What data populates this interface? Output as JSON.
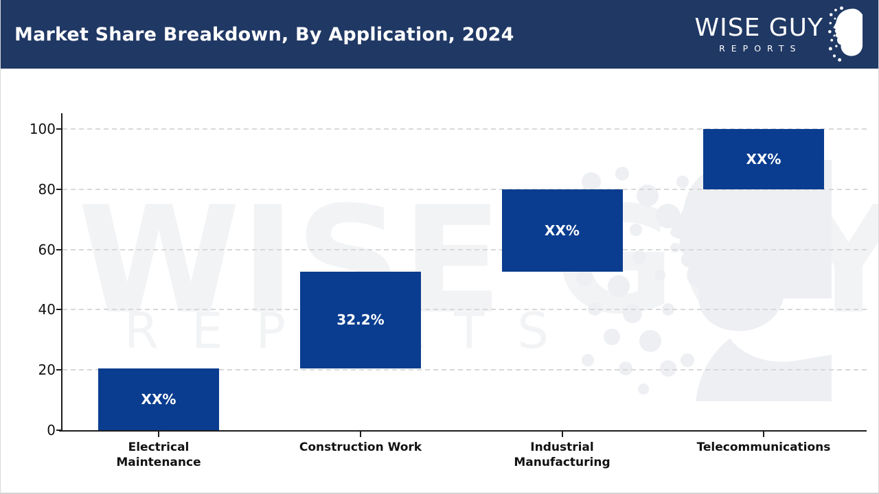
{
  "header": {
    "title": "Market Share Breakdown, By Application, 2024",
    "logo": {
      "name": "WISE GUY",
      "sub": "REPORTS",
      "icon": "wiseguy-face-icon"
    }
  },
  "watermark": {
    "big": "WISE GUY",
    "small": "REPORTS",
    "icon": "wiseguy-face-watermark-icon"
  },
  "chart_data": {
    "type": "bar",
    "subtype": "floating-waterfall",
    "title": "Market Share Breakdown, By Application, 2024",
    "categories": [
      "Electrical\nMaintenance",
      "Construction Work",
      "Industrial\nManufacturing",
      "Telecommunications"
    ],
    "segments": [
      {
        "category": "Electrical Maintenance",
        "start": 0,
        "end": 20.5,
        "label": "XX%"
      },
      {
        "category": "Construction Work",
        "start": 20.5,
        "end": 52.7,
        "label": "32.2%"
      },
      {
        "category": "Industrial Manufacturing",
        "start": 52.7,
        "end": 80,
        "label": "XX%"
      },
      {
        "category": "Telecommunications",
        "start": 80,
        "end": 100,
        "label": "XX%"
      }
    ],
    "ylim": [
      0,
      100
    ],
    "yticks": [
      0,
      20,
      40,
      60,
      80,
      100
    ],
    "grid": "horizontal-dashed",
    "legend": "none",
    "bar_color": "#0a3d8f",
    "bar_label_color": "#ffffff",
    "grid_color": "#d8d8d8",
    "axis_color": "#1c1c1c"
  },
  "colors": {
    "header_bg": "#203864",
    "watermark": "#f2f3f5",
    "page_border": "#d9d9d9"
  }
}
